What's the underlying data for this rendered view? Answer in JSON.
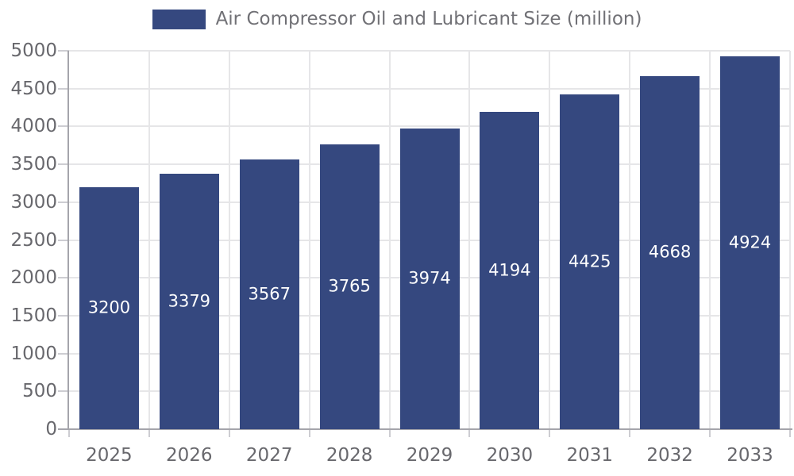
{
  "legend": {
    "label": "Air Compressor Oil and Lubricant Size (million)"
  },
  "chart_data": {
    "type": "bar",
    "title": "Air Compressor Oil and Lubricant Size (million)",
    "categories": [
      "2025",
      "2026",
      "2027",
      "2028",
      "2029",
      "2030",
      "2031",
      "2032",
      "2033"
    ],
    "values": [
      3200,
      3379,
      3567,
      3765,
      3974,
      4194,
      4425,
      4668,
      4924
    ],
    "xlabel": "",
    "ylabel": "",
    "ylim": [
      0,
      5000
    ],
    "ytick_step": 500,
    "grid": true,
    "legend_position": "top",
    "value_labels": "centered-inside-bars"
  },
  "colors": {
    "background": "#ffffff",
    "bar": "#35487f",
    "gridline": "#e6e6e8",
    "axis_line": "#a5a5ab",
    "tick_mark": "#cdcdd2",
    "tick_label": "#68686d",
    "legend_text": "#717176",
    "value_label": "#ffffff"
  }
}
